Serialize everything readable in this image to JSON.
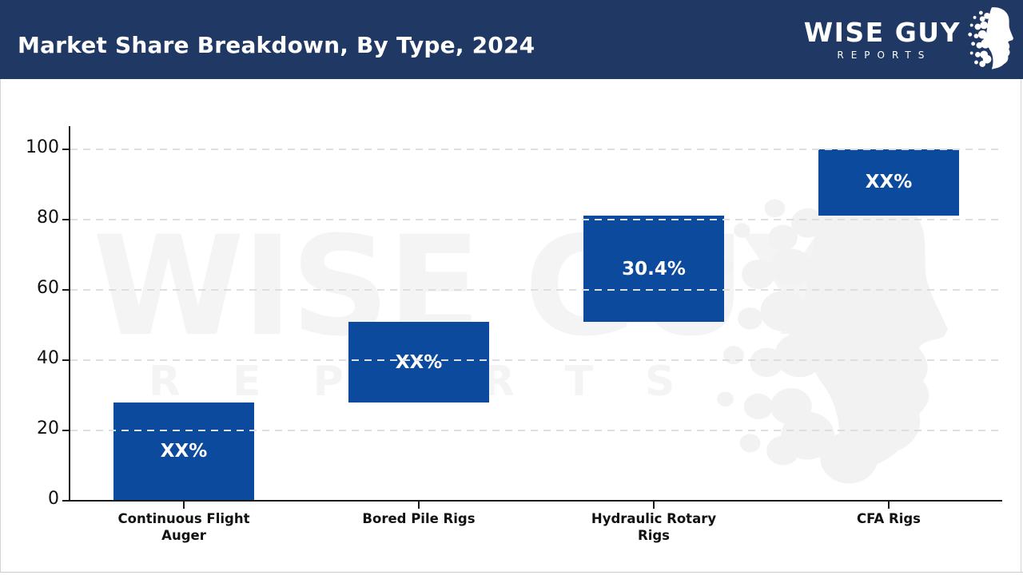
{
  "header": {
    "title": "Market Share Breakdown, By Type, 2024",
    "bg_color": "#203864",
    "logo": {
      "line1": "WISE GUY",
      "line2": "REPORTS"
    }
  },
  "watermark": {
    "line1": "WISE GUY",
    "line2": "REPORTS"
  },
  "chart_data": {
    "type": "bar",
    "subtype": "waterfall",
    "title": "Market Share Breakdown, By Type, 2024",
    "xlabel": "",
    "ylabel": "",
    "ylim": [
      0,
      107
    ],
    "y_ticks": [
      0,
      20,
      40,
      60,
      80,
      100
    ],
    "grid": "dashed horizontal gridlines, drawn over bars",
    "legend": "none",
    "bar_color": "#0c4a9e",
    "categories": [
      "Continuous Flight Auger",
      "Bored Pile Rigs",
      "Hydraulic Rotary Rigs",
      "CFA Rigs"
    ],
    "bars": [
      {
        "category_lines": [
          "Continuous Flight",
          "Auger"
        ],
        "start": 0,
        "end": 28,
        "label": "XX%"
      },
      {
        "category_lines": [
          "Bored Pile Rigs"
        ],
        "start": 28,
        "end": 50.8,
        "label": "XX%"
      },
      {
        "category_lines": [
          "Hydraulic Rotary",
          "Rigs"
        ],
        "start": 50.8,
        "end": 81.2,
        "label": "30.4%"
      },
      {
        "category_lines": [
          "CFA Rigs"
        ],
        "start": 81.2,
        "end": 100,
        "label": "XX%"
      }
    ]
  }
}
